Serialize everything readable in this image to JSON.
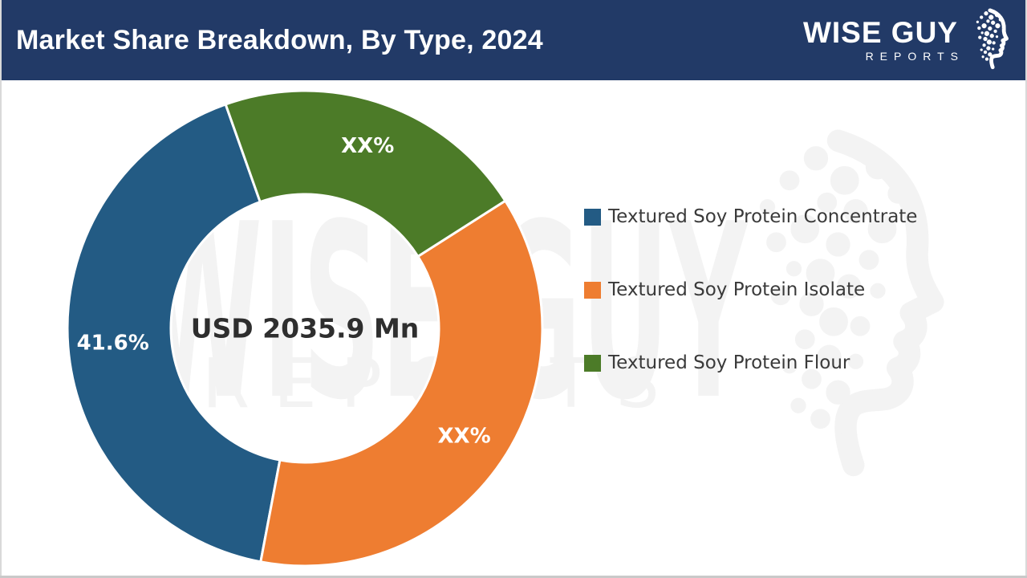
{
  "header": {
    "title": "Market Share Breakdown, By Type, 2024",
    "logo": {
      "line1": "WISE GUY",
      "line2": "REPORTS"
    }
  },
  "watermark": {
    "line1": "WISE GUY",
    "line2": "REPORTS"
  },
  "chart_data": {
    "type": "pie",
    "subtype": "donut",
    "title": "Market Share Breakdown, By Type, 2024",
    "center_label": "USD 2035.9 Mn",
    "legend_position": "right",
    "rotation_deg": 109.5,
    "direction": "counterclockwise",
    "segments": [
      {
        "label": "Textured Soy Protein Concentrate",
        "display_value": "41.6%",
        "value_pct": 41.6,
        "color": "#235b84"
      },
      {
        "label": "Textured Soy Protein Isolate",
        "display_value": "XX%",
        "value_pct": 37.0,
        "color": "#ee7d31"
      },
      {
        "label": "Textured Soy Protein Flour",
        "display_value": "XX%",
        "value_pct": 21.4,
        "color": "#4c7b28"
      }
    ]
  },
  "colors": {
    "header_bg": "#223a67",
    "title_text": "#ffffff",
    "center_text": "#2e2e2e",
    "legend_text": "#3a3a3a",
    "segment_label_text": "#ffffff",
    "watermark": "#f3f3f3",
    "bottom_border": "#c9c9c9"
  }
}
